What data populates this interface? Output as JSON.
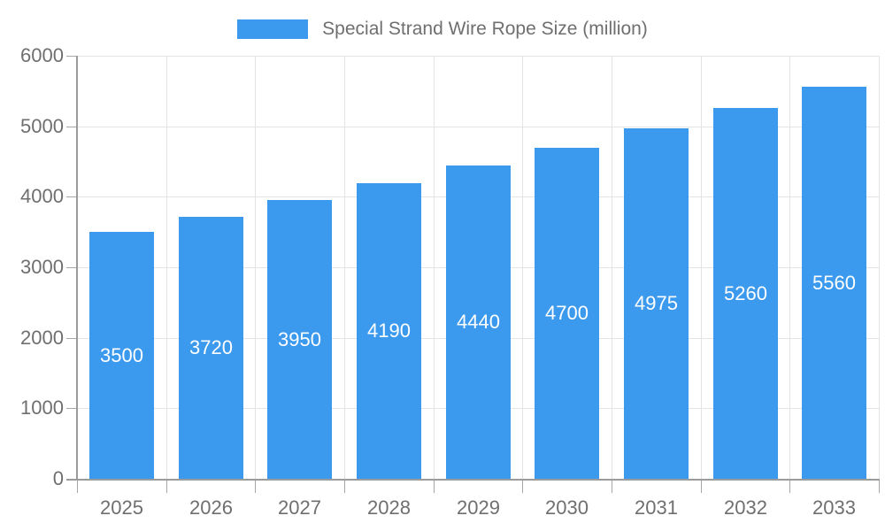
{
  "legend": {
    "label": "Special Strand Wire Rope Size (million)"
  },
  "chart_data": {
    "type": "bar",
    "title": "",
    "categories": [
      "2025",
      "2026",
      "2027",
      "2028",
      "2029",
      "2030",
      "2031",
      "2032",
      "2033"
    ],
    "series": [
      {
        "name": "Special Strand Wire Rope Size (million)",
        "values": [
          3500,
          3720,
          3950,
          4190,
          4440,
          4700,
          4975,
          5260,
          5560
        ]
      }
    ],
    "xlabel": "",
    "ylabel": "",
    "ylim": [
      0,
      6000
    ],
    "ytick_step": 1000,
    "yticks": [
      0,
      1000,
      2000,
      3000,
      4000,
      5000,
      6000
    ],
    "grid": true,
    "legend_position": "top-center",
    "value_labels": "centered-inside-bars",
    "colors": {
      "bar": "#3B99EE",
      "value_label": "#FFFFFF",
      "axis_line": "#9B9B9B",
      "grid_line": "#E4E4E4",
      "tick_mark": "#A6A6A6",
      "tick_label": "#6F6F6F",
      "legend_text": "#6F6F6F",
      "background": "#FFFFFF"
    }
  }
}
